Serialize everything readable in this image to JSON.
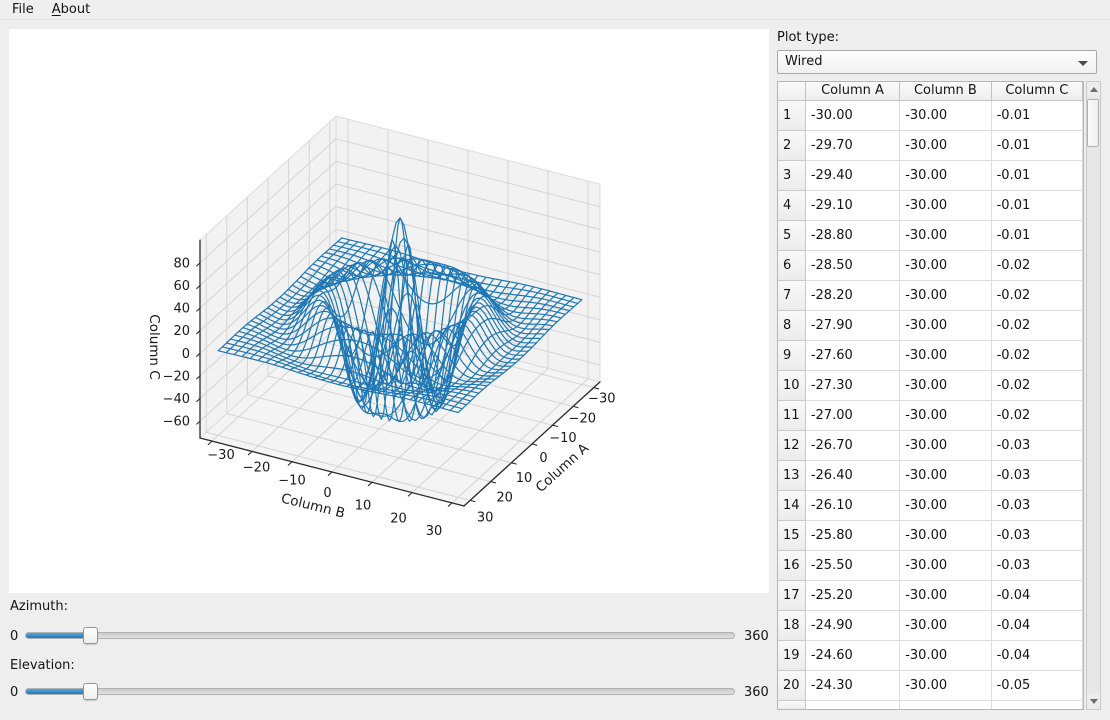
{
  "menu": {
    "file": "File",
    "about_accel": "A",
    "about_rest": "bout"
  },
  "right_panel": {
    "plot_type_label": "Plot type:",
    "plot_type_value": "Wired",
    "table": {
      "headers": [
        "Column A",
        "Column B",
        "Column C"
      ],
      "rows": [
        [
          "1",
          "-30.00",
          "-30.00",
          "-0.01"
        ],
        [
          "2",
          "-29.70",
          "-30.00",
          "-0.01"
        ],
        [
          "3",
          "-29.40",
          "-30.00",
          "-0.01"
        ],
        [
          "4",
          "-29.10",
          "-30.00",
          "-0.01"
        ],
        [
          "5",
          "-28.80",
          "-30.00",
          "-0.01"
        ],
        [
          "6",
          "-28.50",
          "-30.00",
          "-0.02"
        ],
        [
          "7",
          "-28.20",
          "-30.00",
          "-0.02"
        ],
        [
          "8",
          "-27.90",
          "-30.00",
          "-0.02"
        ],
        [
          "9",
          "-27.60",
          "-30.00",
          "-0.02"
        ],
        [
          "10",
          "-27.30",
          "-30.00",
          "-0.02"
        ],
        [
          "11",
          "-27.00",
          "-30.00",
          "-0.02"
        ],
        [
          "12",
          "-26.70",
          "-30.00",
          "-0.03"
        ],
        [
          "13",
          "-26.40",
          "-30.00",
          "-0.03"
        ],
        [
          "14",
          "-26.10",
          "-30.00",
          "-0.03"
        ],
        [
          "15",
          "-25.80",
          "-30.00",
          "-0.03"
        ],
        [
          "16",
          "-25.50",
          "-30.00",
          "-0.03"
        ],
        [
          "17",
          "-25.20",
          "-30.00",
          "-0.04"
        ],
        [
          "18",
          "-24.90",
          "-30.00",
          "-0.04"
        ],
        [
          "19",
          "-24.60",
          "-30.00",
          "-0.04"
        ],
        [
          "20",
          "-24.30",
          "-30.00",
          "-0.05"
        ]
      ]
    }
  },
  "controls": {
    "azimuth_label": "Azimuth:",
    "elevation_label": "Elevation:",
    "azimuth_min": "0",
    "azimuth_max": "360",
    "elevation_min": "0",
    "elevation_max": "360",
    "azimuth_value": 0,
    "elevation_value": 0
  },
  "chart_data": {
    "type": "wireframe-3d-surface",
    "title": "",
    "xlabel": "Column B",
    "ylabel": "Column A",
    "zlabel": "Column C",
    "x_ticks": [
      -30,
      -20,
      -10,
      0,
      10,
      20,
      30
    ],
    "y_ticks": [
      -30,
      -20,
      -10,
      0,
      10,
      20,
      30
    ],
    "z_ticks": [
      80,
      60,
      40,
      20,
      0,
      -20,
      -40,
      -60
    ],
    "x_range": [
      -30,
      30
    ],
    "y_range": [
      -30,
      30
    ],
    "z_axis_range": [
      -75,
      100
    ],
    "box_pad": 33,
    "view": "elev 30, azim -60 (matplotlib default)",
    "surface": {
      "function": "z = A*cos(b*r)*exp(-(r/tau)^2), r = sqrt(x^2+y^2)",
      "A": 95,
      "b": 0.33,
      "tau": 16,
      "grid_step": 2,
      "sample_step": 1
    },
    "line_color": "#1f77b4",
    "pane_color": "#f2f2f2",
    "pane_edge_color": "#dcdcdc",
    "grid_color": "#d4d4d4",
    "spine_color": "#2b2b2b",
    "legend": "off",
    "grid": "on"
  }
}
